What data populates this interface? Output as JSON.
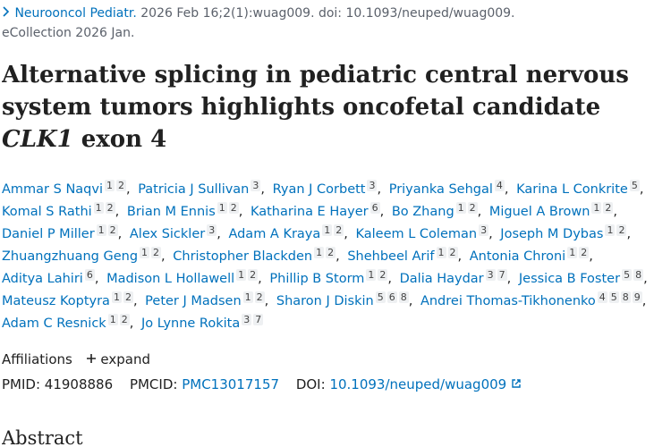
{
  "citation": {
    "journal": "Neurooncol Pediatr.",
    "details": "2026 Feb 16;2(1):wuag009. doi: 10.1093/neuped/wuag009.",
    "ecollection": "eCollection 2026 Jan."
  },
  "title": {
    "main": "Alternative splicing in pediatric central nervous system tumors highlights oncofetal candidate",
    "gene": "CLK1",
    "tail": "exon 4"
  },
  "authors": [
    {
      "name": "Ammar S Naqvi",
      "affiliations": [
        1,
        2
      ]
    },
    {
      "name": "Patricia J Sullivan",
      "affiliations": [
        3
      ]
    },
    {
      "name": "Ryan J Corbett",
      "affiliations": [
        3
      ]
    },
    {
      "name": "Priyanka Sehgal",
      "affiliations": [
        4
      ]
    },
    {
      "name": "Karina L Conkrite",
      "affiliations": [
        5
      ]
    },
    {
      "name": "Komal S Rathi",
      "affiliations": [
        1,
        2
      ]
    },
    {
      "name": "Brian M Ennis",
      "affiliations": [
        1,
        2
      ]
    },
    {
      "name": "Katharina E Hayer",
      "affiliations": [
        6
      ]
    },
    {
      "name": "Bo Zhang",
      "affiliations": [
        1,
        2
      ]
    },
    {
      "name": "Miguel A Brown",
      "affiliations": [
        1,
        2
      ]
    },
    {
      "name": "Daniel P Miller",
      "affiliations": [
        1,
        2
      ]
    },
    {
      "name": "Alex Sickler",
      "affiliations": [
        3
      ]
    },
    {
      "name": "Adam A Kraya",
      "affiliations": [
        1,
        2
      ]
    },
    {
      "name": "Kaleem L Coleman",
      "affiliations": [
        3
      ]
    },
    {
      "name": "Joseph M Dybas",
      "affiliations": [
        1,
        2
      ]
    },
    {
      "name": "Zhuangzhuang Geng",
      "affiliations": [
        1,
        2
      ]
    },
    {
      "name": "Christopher Blackden",
      "affiliations": [
        1,
        2
      ]
    },
    {
      "name": "Shehbeel Arif",
      "affiliations": [
        1,
        2
      ]
    },
    {
      "name": "Antonia Chroni",
      "affiliations": [
        1,
        2
      ]
    },
    {
      "name": "Aditya Lahiri",
      "affiliations": [
        6
      ]
    },
    {
      "name": "Madison L Hollawell",
      "affiliations": [
        1,
        2
      ]
    },
    {
      "name": "Phillip B Storm",
      "affiliations": [
        1,
        2
      ]
    },
    {
      "name": "Dalia Haydar",
      "affiliations": [
        3,
        7
      ]
    },
    {
      "name": "Jessica B Foster",
      "affiliations": [
        5,
        8
      ]
    },
    {
      "name": "Mateusz Koptyra",
      "affiliations": [
        1,
        2
      ]
    },
    {
      "name": "Peter J Madsen",
      "affiliations": [
        1,
        2
      ]
    },
    {
      "name": "Sharon J Diskin",
      "affiliations": [
        5,
        6,
        8
      ]
    },
    {
      "name": "Andrei Thomas-Tikhonenko",
      "affiliations": [
        4,
        5,
        8,
        9
      ]
    },
    {
      "name": "Adam C Resnick",
      "affiliations": [
        1,
        2
      ]
    },
    {
      "name": "Jo Lynne Rokita",
      "affiliations": [
        3,
        7
      ]
    }
  ],
  "affiliations": {
    "label": "Affiliations",
    "toggle": "expand"
  },
  "identifiers": {
    "pmid_label": "PMID:",
    "pmid": "41908886",
    "pmcid_label": "PMCID:",
    "pmcid": "PMC13017157",
    "doi_label": "DOI:",
    "doi": "10.1093/neuped/wuag009"
  },
  "abstract": {
    "heading": "Abstract"
  }
}
